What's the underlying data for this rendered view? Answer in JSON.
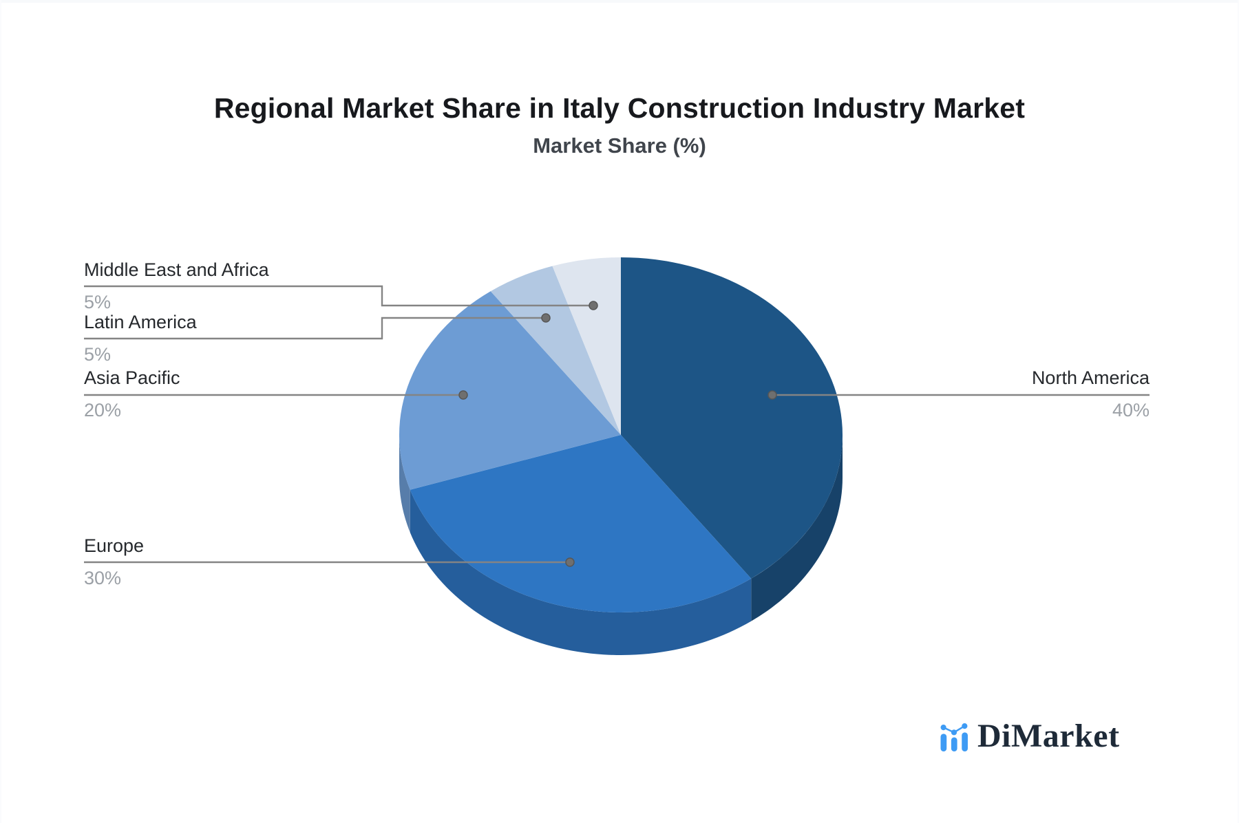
{
  "header": {
    "title": "Regional Market Share in Italy Construction Industry Market",
    "subtitle": "Market Share (%)"
  },
  "chart_data": {
    "type": "pie",
    "style": "3d",
    "title": "Regional Market Share in Italy Construction Industry Market",
    "subtitle": "Market Share (%)",
    "unit": "%",
    "direction": "clockwise",
    "start_angle_deg": 0,
    "legend_position": "callout-labels",
    "slices": [
      {
        "label": "North America",
        "value": 40,
        "pct_label": "40%",
        "color": "#1d5586",
        "side_color": "#174269"
      },
      {
        "label": "Europe",
        "value": 30,
        "pct_label": "30%",
        "color": "#2e76c3",
        "side_color": "#255e9c"
      },
      {
        "label": "Asia Pacific",
        "value": 20,
        "pct_label": "20%",
        "color": "#6d9cd4",
        "side_color": "#577daa"
      },
      {
        "label": "Latin America",
        "value": 5,
        "pct_label": "5%",
        "color": "#b2c8e2",
        "side_color": "#8ea6c2"
      },
      {
        "label": "Middle East and Africa",
        "value": 5,
        "pct_label": "5%",
        "color": "#dee5ef",
        "side_color": "#b7c0ce"
      }
    ],
    "leader_line_color": "#848484",
    "leader_dot_color": "#6f6f6f",
    "label_color": "#25282c",
    "value_color": "#9ba0a6"
  },
  "logo": {
    "text": "DiMarket",
    "icon": "bar-chart-trend-icon",
    "icon_color": "#3e9bf4",
    "text_color": "#1e2a38"
  }
}
